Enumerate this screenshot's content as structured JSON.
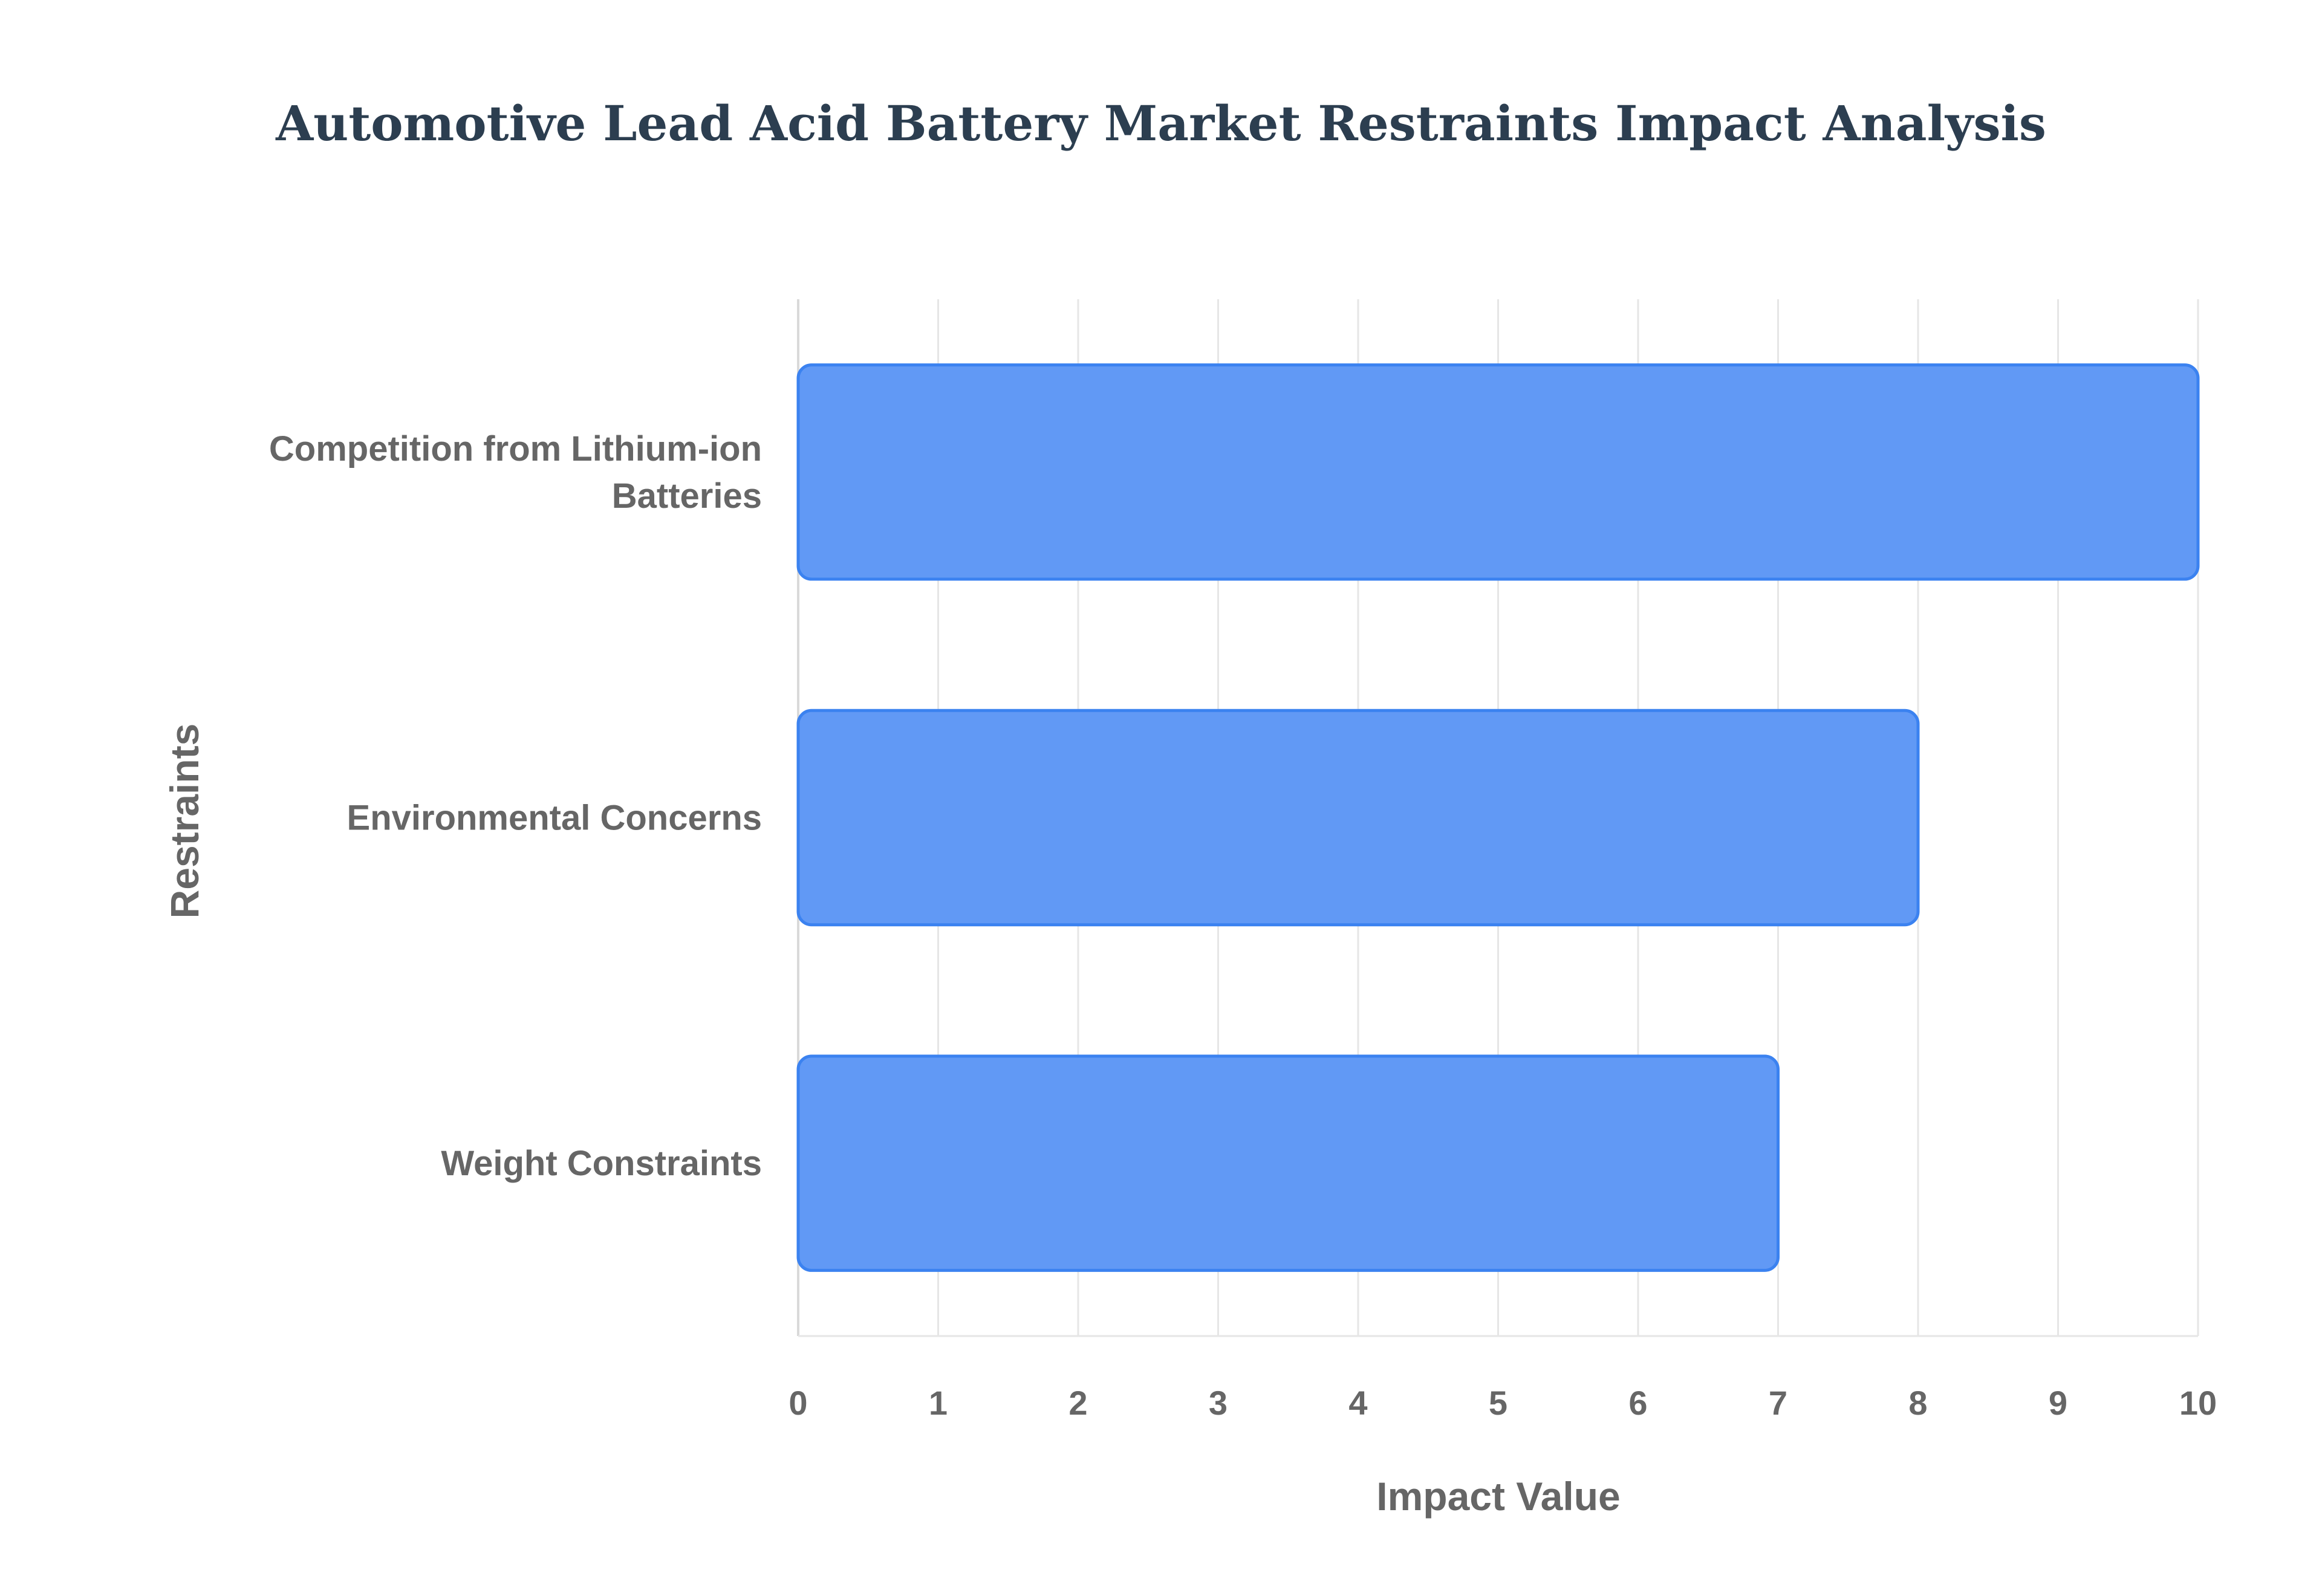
{
  "chart_data": {
    "type": "bar",
    "orientation": "horizontal",
    "title": "Automotive Lead Acid Battery Market Restraints Impact Analysis",
    "xlabel": "Impact Value",
    "ylabel": "Restraints",
    "categories": [
      [
        "Competition from Lithium-ion",
        "Batteries"
      ],
      [
        "Environmental Concerns"
      ],
      [
        "Weight Constraints"
      ]
    ],
    "values": [
      10,
      8,
      7
    ],
    "xlim": [
      0,
      10
    ],
    "xticks": [
      "0",
      "1",
      "2",
      "3",
      "4",
      "5",
      "6",
      "7",
      "8",
      "9",
      "10"
    ],
    "grid": true,
    "legend": "none",
    "colors": {
      "bar_fill": "#6199f5",
      "bar_stroke": "#3b82f0",
      "grid": "#e6e6e6",
      "title": "#2c3e50",
      "text": "#666666"
    }
  }
}
